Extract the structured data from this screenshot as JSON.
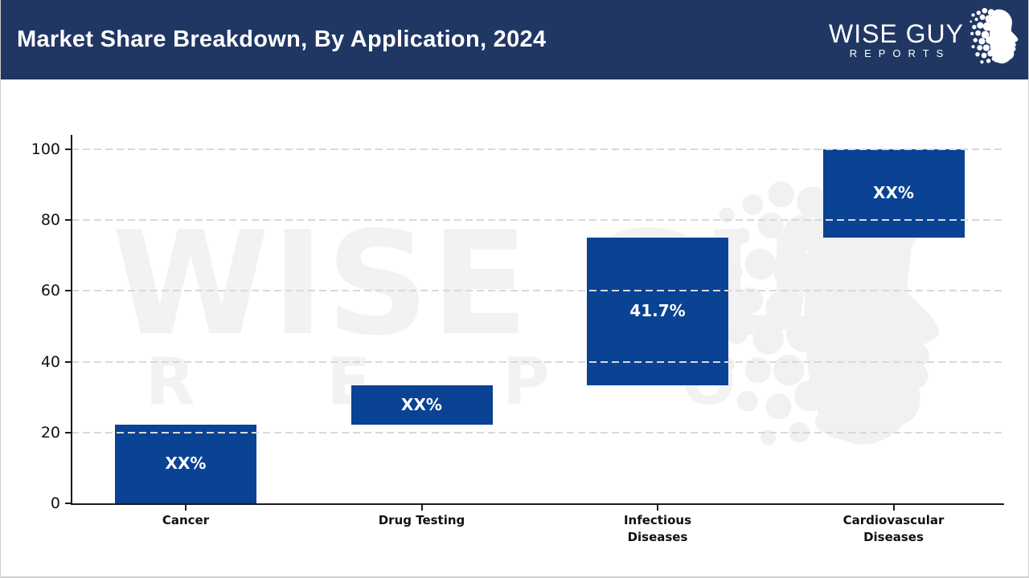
{
  "header": {
    "title": "Market Share Breakdown, By Application, 2024",
    "bg_color": "#203764",
    "logo": {
      "line1": "WISE GUY",
      "line2": "REPORTS"
    }
  },
  "watermark": {
    "line1": "WISE GUY",
    "line2": "R E P O R T S"
  },
  "chart_data": {
    "type": "bar",
    "subtype": "floating-waterfall",
    "title": "Market Share Breakdown, By Application, 2024",
    "xlabel": "",
    "ylabel": "",
    "ylim": [
      0,
      100
    ],
    "yticks": [
      0,
      20,
      40,
      60,
      80,
      100
    ],
    "grid": "horizontal dashed, drawn above bars",
    "legend": "none",
    "bar_color": "#0a4294",
    "label_color": "#ffffff",
    "categories": [
      "Cancer",
      "Drug Testing",
      "Infectious Diseases",
      "Cardiovascular Diseases"
    ],
    "category_label_lines": [
      [
        "Cancer"
      ],
      [
        "Drug Testing"
      ],
      [
        "Infectious",
        "Diseases"
      ],
      [
        "Cardiovascular",
        "Diseases"
      ]
    ],
    "segments": [
      {
        "category": "Cancer",
        "start": 0,
        "end": 22.2,
        "value": 22.2,
        "label": "XX%"
      },
      {
        "category": "Drug Testing",
        "start": 22.2,
        "end": 33.3,
        "value": 11.1,
        "label": "XX%"
      },
      {
        "category": "Infectious Diseases",
        "start": 33.3,
        "end": 75.0,
        "value": 41.7,
        "label": "41.7%"
      },
      {
        "category": "Cardiovascular Diseases",
        "start": 75.0,
        "end": 100.0,
        "value": 25.0,
        "label": "XX%"
      }
    ]
  }
}
